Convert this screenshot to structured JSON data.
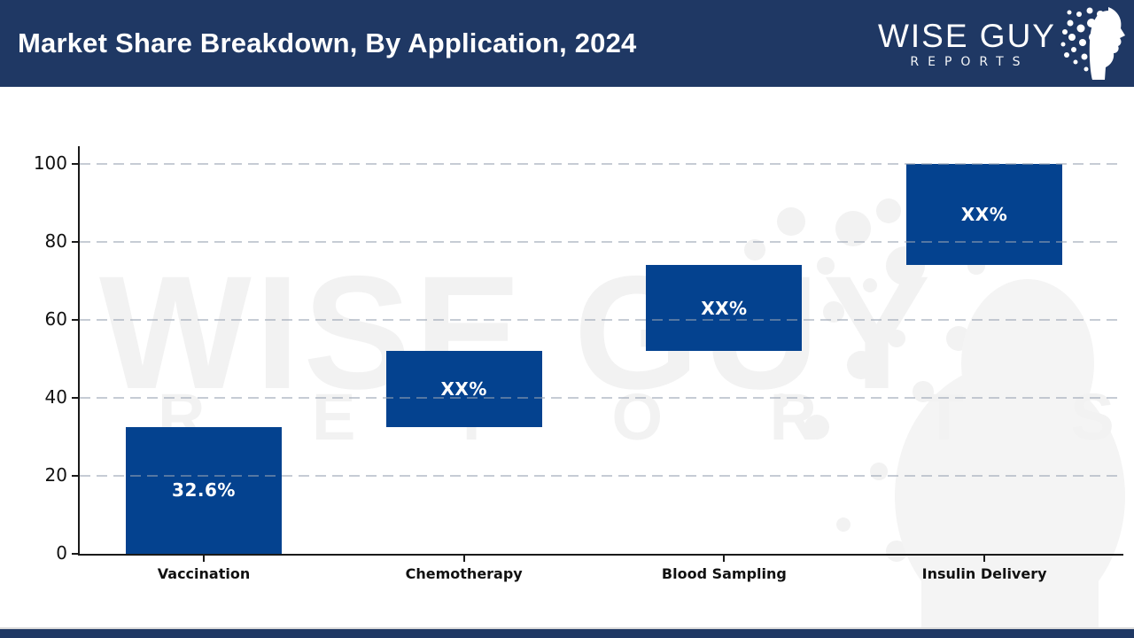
{
  "header": {
    "title": "Market Share Breakdown, By Application, 2024",
    "logo_line1": "WISE GUY",
    "logo_line2": "REPORTS"
  },
  "watermark": {
    "line1": "WISE GUY",
    "line2": "REPORTS"
  },
  "colors": {
    "header_bg": "#1F3864",
    "footer_bg": "#1F3864",
    "bar_fill": "#04428F",
    "bar_label_text": "#FFFFFF",
    "axis": "#1A1A1A",
    "gridline": "#D8D8D8",
    "watermark": "#F2F2F2"
  },
  "chart_data": {
    "type": "bar",
    "subtype": "floating-segment-waterfall",
    "title": "Market Share Breakdown, By Application, 2024",
    "categories": [
      "Vaccination",
      "Chemotherapy",
      "Blood Sampling",
      "Insulin Delivery"
    ],
    "series": [
      {
        "name": "Market share (%)",
        "segments": [
          {
            "from": 0,
            "to": 32.6,
            "label": "32.6%"
          },
          {
            "from": 32.6,
            "to": 52,
            "label": "XX%"
          },
          {
            "from": 52,
            "to": 74,
            "label": "XX%"
          },
          {
            "from": 74,
            "to": 100,
            "label": "XX%"
          }
        ]
      }
    ],
    "xlabel": "",
    "ylabel": "",
    "y_ticks": [
      0,
      20,
      40,
      60,
      80,
      100
    ],
    "ylim": [
      0,
      108
    ],
    "grid": "horizontal-dashed",
    "legend": "none"
  }
}
